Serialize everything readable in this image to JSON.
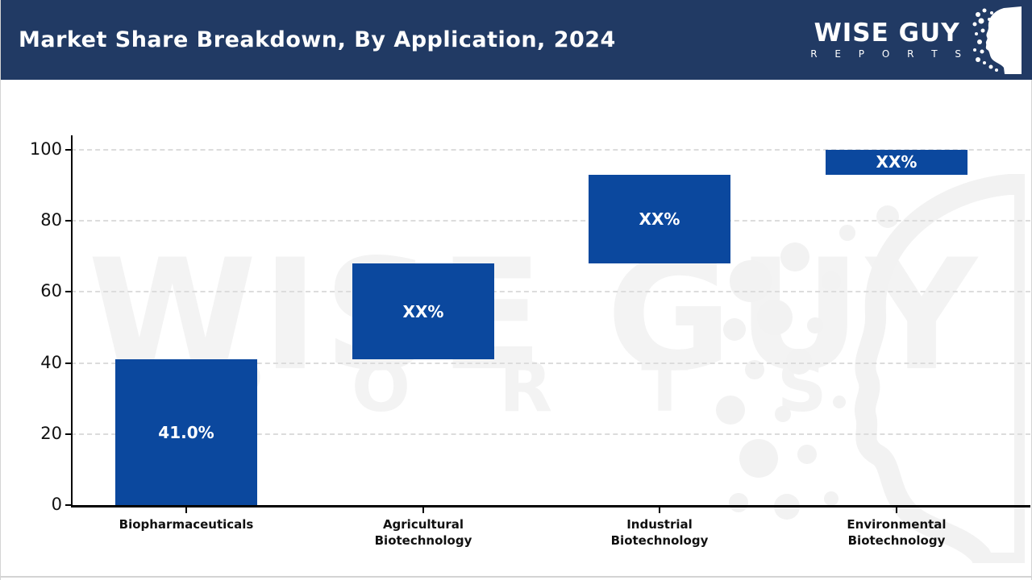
{
  "header": {
    "title": "Market Share Breakdown, By Application, 2024",
    "logo": {
      "wordmark": "WISE GUY",
      "subtext": "R E P O R T S",
      "icon": "dotted-head-profile-icon"
    }
  },
  "watermark": {
    "line1": "WISE GUY",
    "line2": "P O R T S",
    "icon": "dotted-head-profile-watermark"
  },
  "colors": {
    "header_bg": "#213a64",
    "bar_blue": "#0b489e",
    "grid_line": "#dcdcdc",
    "axis_line": "#000000",
    "tick_text": "#111111",
    "bar_label_text": "#ffffff",
    "title_text": "#ffffff",
    "watermark_gray": "#f3f3f3"
  },
  "chart_data": {
    "type": "bar",
    "subtype": "waterfall",
    "title": "Market Share Breakdown, By Application, 2024",
    "categories": [
      "Biopharmaceuticals",
      "Agricultural\nBiotechnology",
      "Industrial\nBiotechnology",
      "Environmental\nBiotechnology"
    ],
    "bars": [
      {
        "category": "Biopharmaceuticals",
        "start": 0,
        "end": 41,
        "value": 41,
        "label": "41.0%"
      },
      {
        "category": "Agricultural Biotechnology",
        "start": 41,
        "end": 68,
        "value": 27,
        "label": "XX%"
      },
      {
        "category": "Industrial Biotechnology",
        "start": 68,
        "end": 93,
        "value": 25,
        "label": "XX%"
      },
      {
        "category": "Environmental Biotechnology",
        "start": 93,
        "end": 100,
        "value": 7,
        "label": "XX%"
      }
    ],
    "y_ticks": [
      0,
      20,
      40,
      60,
      80,
      100
    ],
    "ylim": [
      0,
      105
    ],
    "xlabel": "",
    "ylabel": "",
    "grid": "horizontal-dashed",
    "legend": "none",
    "bar_color": "#0b489e"
  }
}
